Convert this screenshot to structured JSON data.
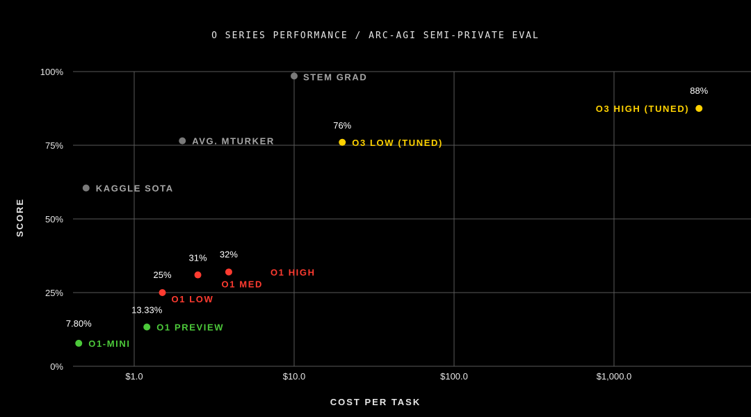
{
  "chart_data": {
    "type": "scatter",
    "title": "O SERIES PERFORMANCE / ARC-AGI SEMI-PRIVATE EVAL",
    "xlabel": "COST PER TASK",
    "ylabel": "SCORE",
    "x_scale": "log",
    "xlim": [
      0.4,
      10000
    ],
    "ylim": [
      0,
      100
    ],
    "x_ticks": [
      {
        "value": 1,
        "label": "$1.0"
      },
      {
        "value": 10,
        "label": "$10.0"
      },
      {
        "value": 100,
        "label": "$100.0"
      },
      {
        "value": 1000,
        "label": "$1,000.0"
      }
    ],
    "y_ticks": [
      {
        "value": 0,
        "label": "0%"
      },
      {
        "value": 25,
        "label": "25%"
      },
      {
        "value": 50,
        "label": "50%"
      },
      {
        "value": 75,
        "label": "75%"
      },
      {
        "value": 100,
        "label": "100%"
      }
    ],
    "grid": true,
    "colors": {
      "green": "#4cc93a",
      "red": "#ff3b30",
      "yellow": "#ffd200",
      "gray": "#8c8c8c"
    },
    "points": [
      {
        "name": "O1-MINI",
        "x": 0.45,
        "y": 7.8,
        "value_label": "7.80%",
        "color": "green"
      },
      {
        "name": "O1 PREVIEW",
        "x": 1.2,
        "y": 13.33,
        "value_label": "13.33%",
        "color": "green"
      },
      {
        "name": "O1 LOW",
        "x": 1.5,
        "y": 25,
        "value_label": "25%",
        "color": "red"
      },
      {
        "name": "O1 MED",
        "x": 2.5,
        "y": 31,
        "value_label": "31%",
        "color": "red"
      },
      {
        "name": "O1 HIGH",
        "x": 3.9,
        "y": 32,
        "value_label": "32%",
        "color": "red"
      },
      {
        "name": "O3 LOW (TUNED)",
        "x": 20,
        "y": 76,
        "value_label": "76%",
        "color": "yellow"
      },
      {
        "name": "O3 HIGH (TUNED)",
        "x": 3400,
        "y": 87.5,
        "value_label": "88%",
        "color": "yellow"
      },
      {
        "name": "STEM GRAD",
        "x": 10,
        "y": 98.5,
        "value_label": "",
        "color": "gray"
      },
      {
        "name": "AVG. MTURKER",
        "x": 2.0,
        "y": 76.5,
        "value_label": "",
        "color": "gray"
      },
      {
        "name": "KAGGLE SOTA",
        "x": 0.5,
        "y": 60.5,
        "value_label": "",
        "color": "gray"
      }
    ]
  }
}
